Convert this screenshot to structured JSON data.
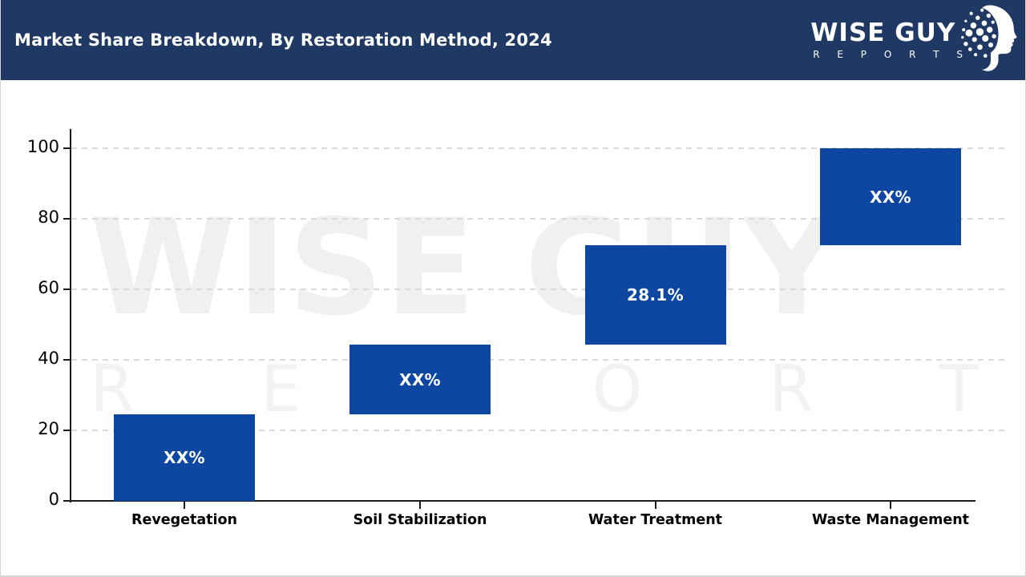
{
  "header": {
    "title": "Market Share Breakdown, By Restoration Method, 2024",
    "logo": {
      "line1": "WISE GUY",
      "line2": "R E P O R T S"
    }
  },
  "watermark": {
    "line1": "WISE GUY",
    "line2": "R E P O R T S"
  },
  "chart_data": {
    "type": "bar",
    "subtype": "waterfall",
    "title": "Market Share Breakdown, By Restoration Method, 2024",
    "categories": [
      "Revegetation",
      "Soil Stabilization",
      "Water Treatment",
      "Waste Management"
    ],
    "series": [
      {
        "name": "Market Share (%)",
        "segments": [
          {
            "category": "Revegetation",
            "start": 0,
            "end": 24.5,
            "label": "XX%"
          },
          {
            "category": "Soil Stabilization",
            "start": 24.5,
            "end": 44.3,
            "label": "XX%"
          },
          {
            "category": "Water Treatment",
            "start": 44.3,
            "end": 72.4,
            "label": "28.1%"
          },
          {
            "category": "Waste Management",
            "start": 72.4,
            "end": 100,
            "label": "XX%"
          }
        ]
      }
    ],
    "xlabel": "",
    "ylabel": "",
    "ylim": [
      0,
      100
    ],
    "yticks": [
      0,
      20,
      40,
      60,
      80,
      100
    ],
    "grid": "dashed-horizontal",
    "legend": "none",
    "bar_color": "#0d47a1",
    "bar_label_color": "#ffffff"
  },
  "colors": {
    "header_bg": "#1f3864",
    "bar": "#0d47a1",
    "grid": "#dadada",
    "axis": "#1a1a1a",
    "watermark": "#f0f0f0",
    "frame": "#d6d6d6"
  }
}
